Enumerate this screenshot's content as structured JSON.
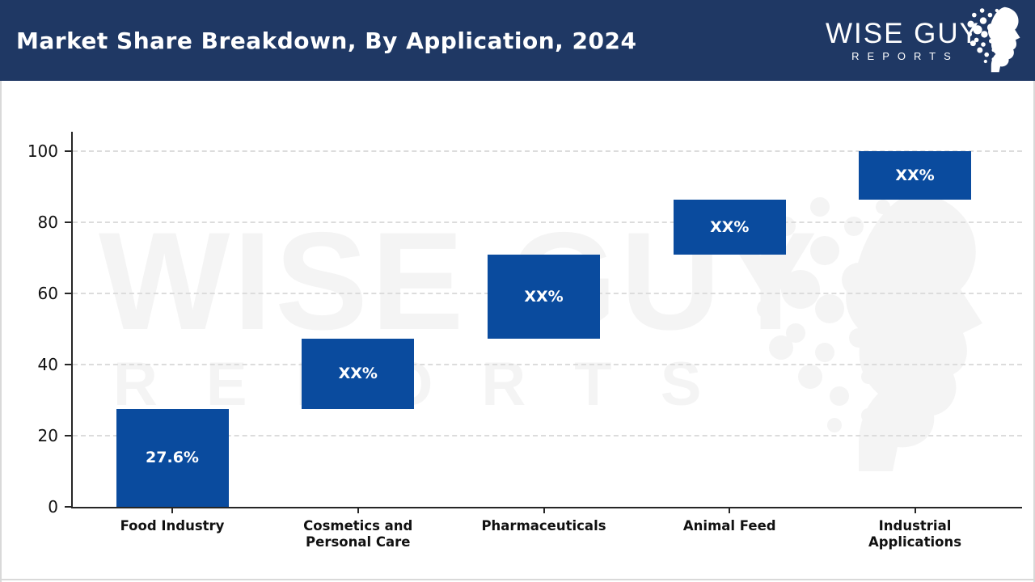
{
  "header": {
    "title": "Market Share Breakdown, By Application, 2024",
    "bg_color": "#1f3864",
    "logo": {
      "line1": "WISE GUY",
      "line2": "REPORTS"
    }
  },
  "watermark": {
    "line1": "WISE GUY",
    "line2": "REPORTS"
  },
  "chart_data": {
    "type": "bar",
    "subtype": "floating-waterfall",
    "title": "Market Share Breakdown, By Application, 2024",
    "xlabel": "",
    "ylabel": "",
    "ylim": [
      0,
      105.5
    ],
    "yticks": [
      0,
      20,
      40,
      60,
      80,
      100
    ],
    "grid": "horizontal-dashed",
    "legend": "none",
    "bar_color": "#0a4b9e",
    "axis_color": "#262626",
    "grid_color": "#dcdcdc",
    "watermark_color": "#f4f4f4",
    "header_color": "#1f3864",
    "segments": [
      {
        "category": "Food Industry",
        "start": 0,
        "end": 27.6,
        "label": "27.6%"
      },
      {
        "category": "Cosmetics and\nPersonal Care",
        "start": 27.6,
        "end": 47.2,
        "label": "XX%"
      },
      {
        "category": "Pharmaceuticals",
        "start": 47.2,
        "end": 70.9,
        "label": "XX%"
      },
      {
        "category": "Animal Feed",
        "start": 70.9,
        "end": 86.4,
        "label": "XX%"
      },
      {
        "category": "Industrial\nApplications",
        "start": 86.4,
        "end": 100,
        "label": "XX%"
      }
    ]
  }
}
